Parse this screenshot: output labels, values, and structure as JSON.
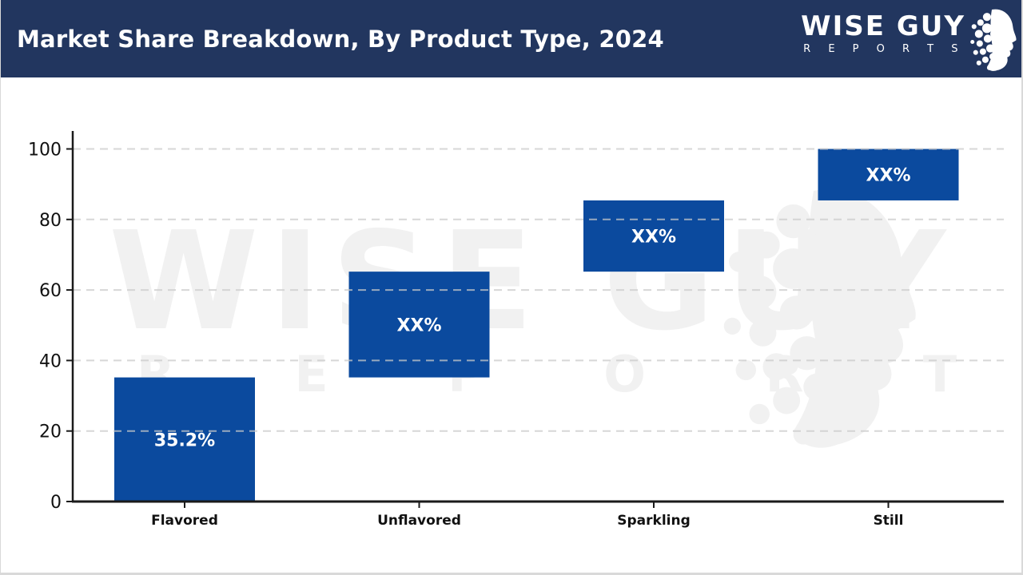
{
  "header": {
    "title": "Market Share Breakdown, By Product Type, 2024",
    "bg_color": "#22365f",
    "logo": {
      "line1": "WISE GUY",
      "line2": "R E P O R T S"
    }
  },
  "icons": {
    "logo_head": "wise-guy-dotted-head-icon",
    "watermark_head": "wise-guy-dotted-head-watermark-icon"
  },
  "watermark": {
    "line1": "WISE GUY",
    "line2": "R E P O R T S"
  },
  "colors": {
    "bar": "#0b4a9e",
    "bar_label": "#ffffff",
    "axis": "#1a1a1a",
    "tick_label": "#111111",
    "gridline": "#c9c9c9",
    "watermark": "#f1f1f1",
    "header_bg": "#22365f"
  },
  "chart_data": {
    "type": "bar",
    "subtype": "floating-waterfall",
    "title": "Market Share Breakdown, By Product Type, 2024",
    "categories": [
      "Flavored",
      "Unflavored",
      "Sparkling",
      "Still"
    ],
    "segments": [
      {
        "category": "Flavored",
        "start": 0,
        "end": 35.2,
        "label": "35.2%"
      },
      {
        "category": "Unflavored",
        "start": 35.2,
        "end": 65.2,
        "label": "XX%"
      },
      {
        "category": "Sparkling",
        "start": 65.2,
        "end": 85.4,
        "label": "XX%"
      },
      {
        "category": "Still",
        "start": 85.4,
        "end": 100,
        "label": "XX%"
      }
    ],
    "xlabel": "",
    "ylabel": "",
    "ylim": [
      0,
      100
    ],
    "yticks": [
      0,
      20,
      40,
      60,
      80,
      100
    ],
    "grid": "horizontal-dashed",
    "legend": "none",
    "bar_color": "#0b4a9e",
    "bar_label_color": "#ffffff"
  }
}
